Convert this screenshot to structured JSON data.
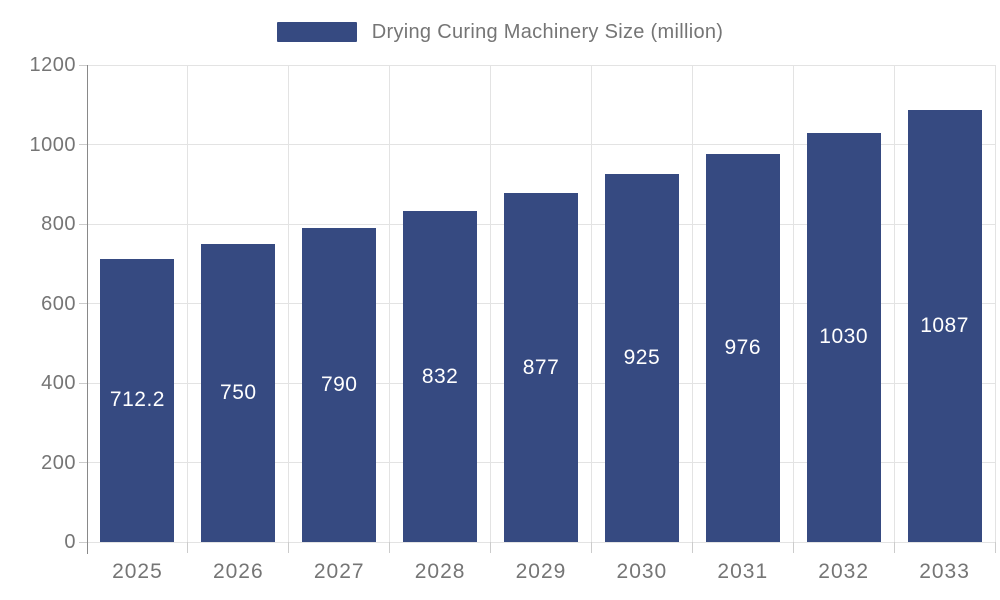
{
  "chart_data": {
    "type": "bar",
    "legend": "Drying Curing Machinery Size (million)",
    "legend_position": "top-center",
    "categories": [
      "2025",
      "2026",
      "2027",
      "2028",
      "2029",
      "2030",
      "2031",
      "2032",
      "2033"
    ],
    "values": [
      712.2,
      750,
      790,
      832,
      877,
      925,
      976,
      1030,
      1087
    ],
    "value_labels": [
      "712.2",
      "750",
      "790",
      "832",
      "877",
      "925",
      "976",
      "1030",
      "1087"
    ],
    "title": "",
    "xlabel": "",
    "ylabel": "",
    "ylim": [
      0,
      1200
    ],
    "yticks": [
      0,
      200,
      400,
      600,
      800,
      1000,
      1200
    ],
    "grid": true,
    "colors": {
      "bar": "#364a81",
      "bar_value_text": "#ffffff",
      "axis_text": "#757575",
      "grid_line": "#e3e3e3",
      "axis_line": "#898989",
      "tick_line": "#cccccc",
      "background": "#ffffff"
    }
  }
}
